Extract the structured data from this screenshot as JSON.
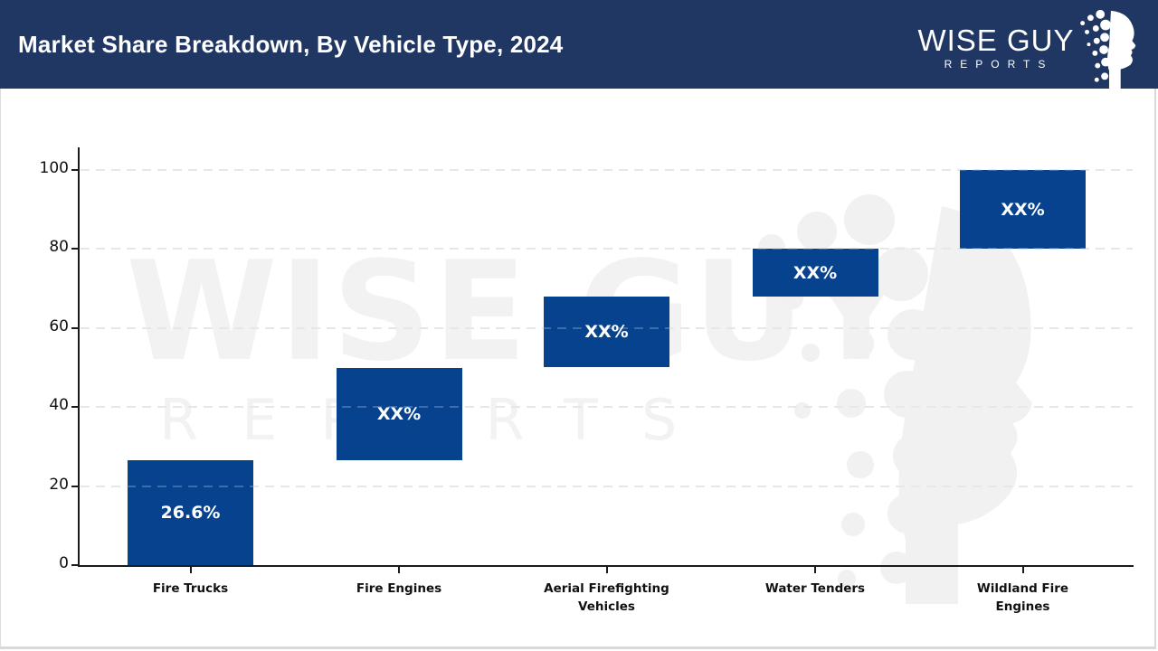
{
  "header": {
    "title": "Market Share Breakdown, By Vehicle Type, 2024",
    "logo": {
      "line1": "WISE GUY",
      "line2": "REPORTS"
    }
  },
  "watermark": {
    "line1": "WISE GUY",
    "line2": "REPORTS"
  },
  "chart_data": {
    "type": "bar",
    "subtype": "waterfall",
    "title": "Market Share Breakdown, By Vehicle Type, 2024",
    "categories": [
      "Fire Trucks",
      "Fire Engines",
      "Aerial Firefighting Vehicles",
      "Water Tenders",
      "Wildland Fire Engines"
    ],
    "segments": [
      {
        "category": "Fire Trucks",
        "start": 0,
        "end": 26.6,
        "value": 26.6,
        "label": "26.6%"
      },
      {
        "category": "Fire Engines",
        "start": 26.6,
        "end": 50,
        "value": 23.4,
        "label": "XX%"
      },
      {
        "category": "Aerial Firefighting Vehicles",
        "start": 50,
        "end": 68,
        "value": 18,
        "label": "XX%"
      },
      {
        "category": "Water Tenders",
        "start": 68,
        "end": 80,
        "value": 12,
        "label": "XX%"
      },
      {
        "category": "Wildland Fire Engines",
        "start": 80,
        "end": 100,
        "value": 20,
        "label": "XX%"
      }
    ],
    "yticks": [
      0,
      20,
      40,
      60,
      80,
      100
    ],
    "ylim": [
      0,
      100
    ],
    "xlabel": "",
    "ylabel": "",
    "grid": "horizontal-dashed",
    "legend": "none",
    "bar_color": "#07428f",
    "bar_label_color": "#ffffff",
    "axis_color": "#1a1a1a",
    "grid_color": "#e0e0e0"
  },
  "colors": {
    "header_bg": "#203764",
    "header_text": "#ffffff",
    "watermark": "#f2f2f2",
    "page_border": "#d9d9d9"
  }
}
